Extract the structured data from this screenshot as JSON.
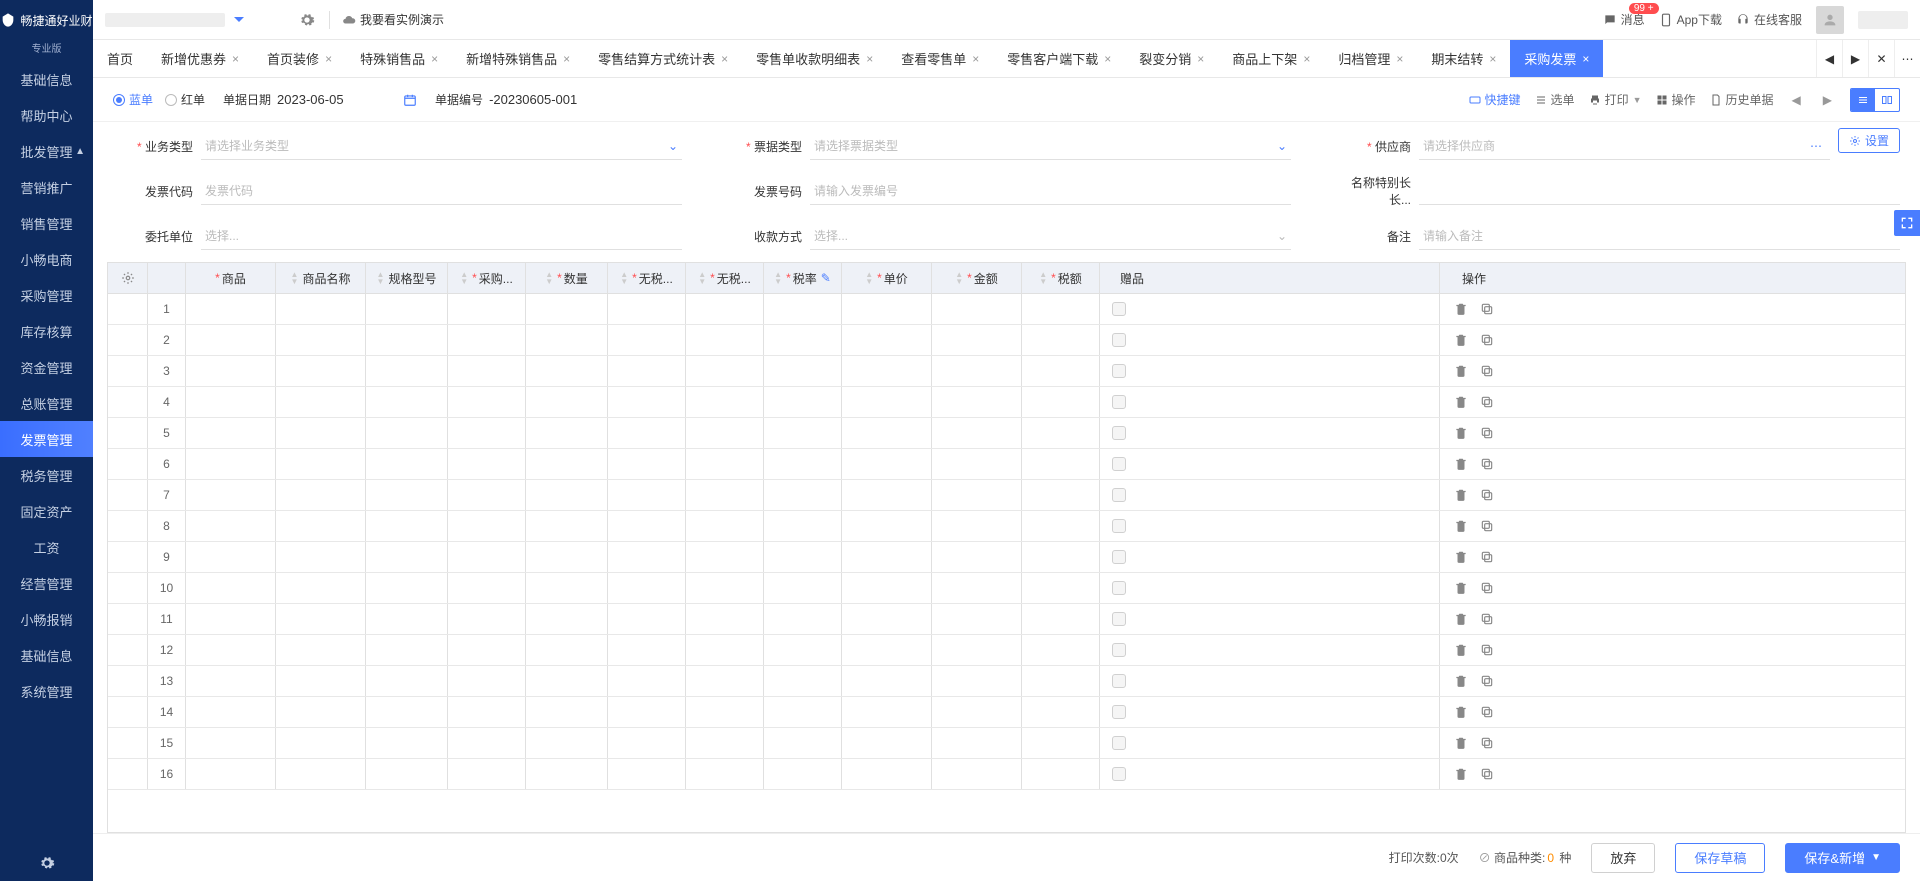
{
  "brand": {
    "name": "畅捷通好业财",
    "edition": "专业版"
  },
  "sidebar": {
    "items": [
      {
        "label": "基础信息",
        "active": false
      },
      {
        "label": "帮助中心",
        "active": false
      },
      {
        "label": "批发管理",
        "active": false,
        "expand": true
      },
      {
        "label": "营销推广",
        "active": false
      },
      {
        "label": "销售管理",
        "active": false
      },
      {
        "label": "小畅电商",
        "active": false
      },
      {
        "label": "采购管理",
        "active": false
      },
      {
        "label": "库存核算",
        "active": false
      },
      {
        "label": "资金管理",
        "active": false
      },
      {
        "label": "总账管理",
        "active": false
      },
      {
        "label": "发票管理",
        "active": true
      },
      {
        "label": "税务管理",
        "active": false
      },
      {
        "label": "固定资产",
        "active": false
      },
      {
        "label": "工资",
        "active": false
      },
      {
        "label": "经营管理",
        "active": false
      },
      {
        "label": "小畅报销",
        "active": false
      },
      {
        "label": "基础信息",
        "active": false
      },
      {
        "label": "系统管理",
        "active": false
      }
    ]
  },
  "topbar": {
    "demo_link": "我要看实例演示",
    "msg": "消息",
    "msg_badge": "99 +",
    "app": "App下载",
    "cs": "在线客服"
  },
  "tabs": [
    {
      "label": "首页",
      "closable": false
    },
    {
      "label": "新增优惠券",
      "closable": true
    },
    {
      "label": "首页装修",
      "closable": true
    },
    {
      "label": "特殊销售品",
      "closable": true
    },
    {
      "label": "新增特殊销售品",
      "closable": true
    },
    {
      "label": "零售结算方式统计表",
      "closable": true
    },
    {
      "label": "零售单收款明细表",
      "closable": true
    },
    {
      "label": "查看零售单",
      "closable": true
    },
    {
      "label": "零售客户端下载",
      "closable": true
    },
    {
      "label": "裂变分销",
      "closable": true
    },
    {
      "label": "商品上下架",
      "closable": true
    },
    {
      "label": "归档管理",
      "closable": true
    },
    {
      "label": "期末结转",
      "closable": true
    },
    {
      "label": "采购发票",
      "closable": true,
      "active": true
    }
  ],
  "toolbar": {
    "radio_blue": "蓝单",
    "radio_red": "红单",
    "date_label": "单据日期",
    "date_value": "2023-06-05",
    "code_label": "单据编号",
    "code_value": "-20230605-001",
    "shortcut": "快捷键",
    "select": "选单",
    "print": "打印",
    "ops": "操作",
    "history": "历史单据"
  },
  "form": {
    "biz_type": {
      "label": "业务类型",
      "ph": "请选择业务类型"
    },
    "inv_type": {
      "label": "票据类型",
      "ph": "请选择票据类型"
    },
    "supplier": {
      "label": "供应商",
      "ph": "请选择供应商"
    },
    "inv_code": {
      "label": "发票代码",
      "ph": "发票代码"
    },
    "inv_no": {
      "label": "发票号码",
      "ph": "请输入发票编号"
    },
    "long_name": {
      "label": "名称特别长长..."
    },
    "agent": {
      "label": "委托单位",
      "ph": "选择..."
    },
    "pay_method": {
      "label": "收款方式",
      "ph": "选择..."
    },
    "remark": {
      "label": "备注",
      "ph": "请输入备注"
    },
    "settings": "设置"
  },
  "table": {
    "cols": {
      "product": "商品",
      "name": "商品名称",
      "spec": "规格型号",
      "buy": "采购...",
      "qty": "数量",
      "nt1": "无税...",
      "nt2": "无税...",
      "rate": "税率",
      "price": "单价",
      "amt": "金额",
      "tax": "税额",
      "gift": "赠品",
      "ops": "操作"
    },
    "row_count": 16
  },
  "footer": {
    "print_count_label": "打印次数:",
    "print_count": "0次",
    "sku_label": "商品种类:",
    "sku_count": "0",
    "sku_unit": " 种",
    "discard": "放弃",
    "draft": "保存草稿",
    "save_new": "保存&新增"
  }
}
